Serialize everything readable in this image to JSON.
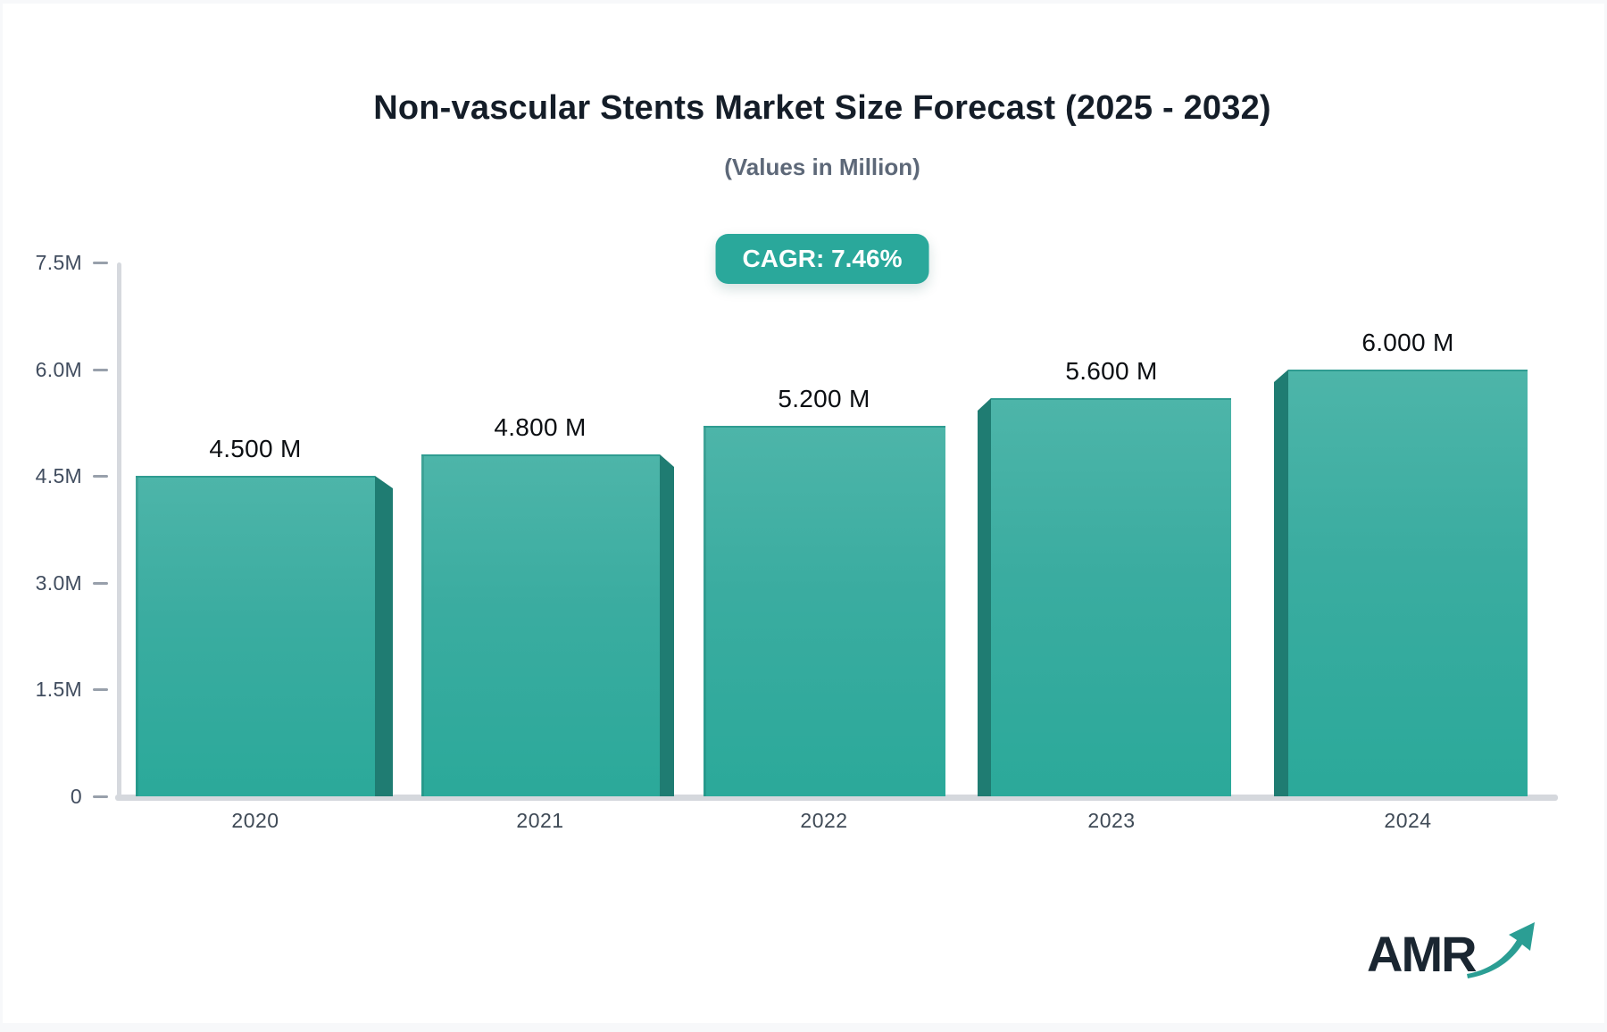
{
  "title": "Non-vascular Stents Market Size Forecast (2025 - 2032)",
  "subtitle": "(Values in Million)",
  "cagr_badge": "CAGR: 7.46%",
  "chart_data": {
    "type": "bar",
    "title": "Non-vascular Stents Market Size Forecast (2025 - 2032)",
    "subtitle": "(Values in Million)",
    "unit": "Million",
    "categories": [
      "2020",
      "2021",
      "2022",
      "2023",
      "2024"
    ],
    "values": [
      4.5,
      4.8,
      5.2,
      5.6,
      6.0
    ],
    "value_labels": [
      "4.500 M",
      "4.800 M",
      "5.200 M",
      "5.600 M",
      "6.000 M"
    ],
    "cagr": "7.46%",
    "ylim": [
      0,
      7.5
    ],
    "y_ticks": [
      7.5,
      6.0,
      4.5,
      3.0,
      1.5,
      0
    ],
    "y_tick_labels": [
      "7.5M",
      "6.0M",
      "4.5M",
      "3.0M",
      "1.5M",
      "0"
    ],
    "grid": false,
    "legend": "none"
  },
  "colors": {
    "bar_top": "#4db5a9",
    "bar_bottom": "#2ba99a",
    "bar_side": "#1f7c72",
    "badge_bg": "#2aa89b",
    "axis_line": "#d6d9de",
    "tick_text": "#414d5f",
    "title_text": "#141d28",
    "subtitle_text": "#5d6878",
    "page_bg": "#f7f8fa",
    "logo_text": "#1a2631",
    "logo_arrow": "#2b9e94"
  },
  "logo": {
    "text": "AMR"
  }
}
